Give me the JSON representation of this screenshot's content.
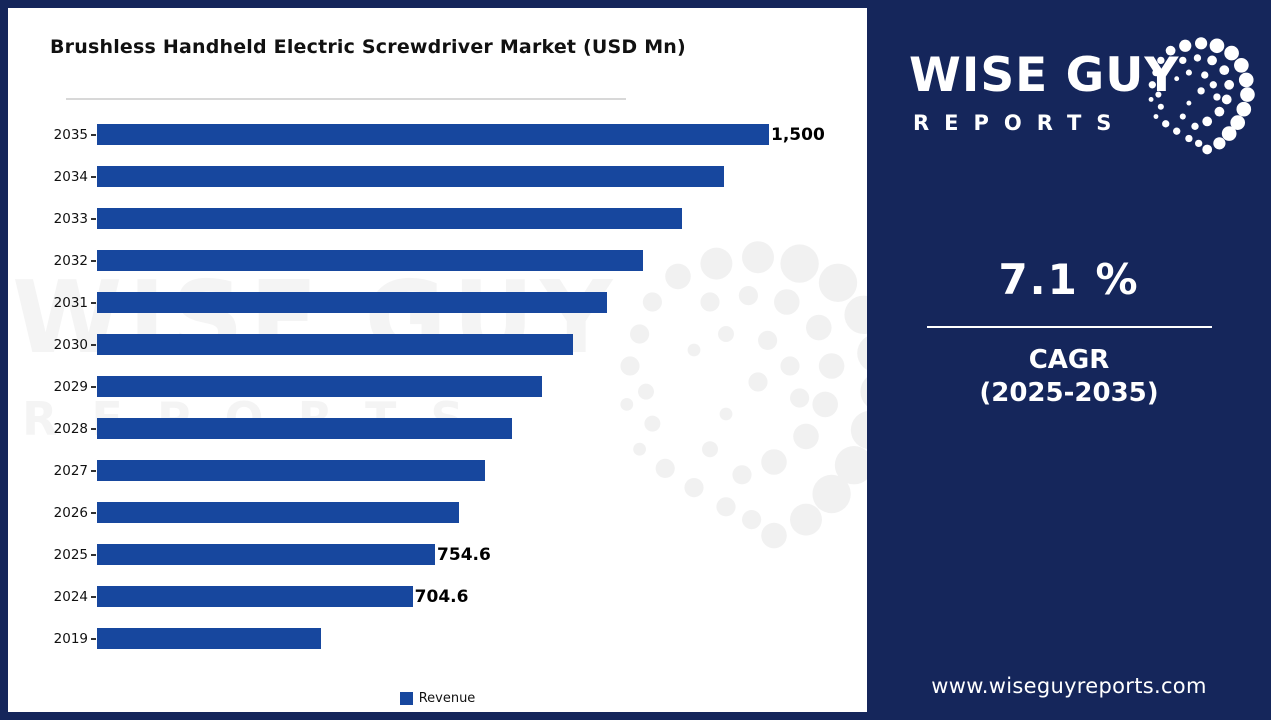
{
  "title": "Brushless Handheld Electric Screwdriver Market (USD Mn)",
  "legend": {
    "label": "Revenue"
  },
  "colors": {
    "bar": "#17479E",
    "panel": "#15265B",
    "value_label": "#000000"
  },
  "chart_data": {
    "type": "bar",
    "orientation": "horizontal",
    "title": "Brushless Handheld Electric Screwdriver Market (USD Mn)",
    "xlabel": "",
    "ylabel": "",
    "categories": [
      "2035",
      "2034",
      "2033",
      "2032",
      "2031",
      "2030",
      "2029",
      "2028",
      "2027",
      "2026",
      "2025",
      "2024",
      "2019"
    ],
    "series": [
      {
        "name": "Revenue",
        "values": [
          1500,
          1399,
          1306.3,
          1219.7,
          1138.8,
          1063.3,
          992.8,
          927,
          865.6,
          808.2,
          754.6,
          704.6,
          500
        ]
      }
    ],
    "value_labels": {
      "2035": "1,500",
      "2025": "754.6",
      "2024": "704.6"
    },
    "xlim": [
      0,
      1500
    ],
    "grid": false,
    "legend_position": "bottom"
  },
  "panel": {
    "logo_line1": "WISE GUY",
    "logo_line2": "REPORTS",
    "cagr_value": "7.1 %",
    "cagr_label_line1": "CAGR",
    "cagr_label_line2": "(2025-2035)",
    "website": "www.wiseguyreports.com"
  },
  "watermark": {
    "line1": "WISE GUY",
    "line2": "REPORTS"
  }
}
